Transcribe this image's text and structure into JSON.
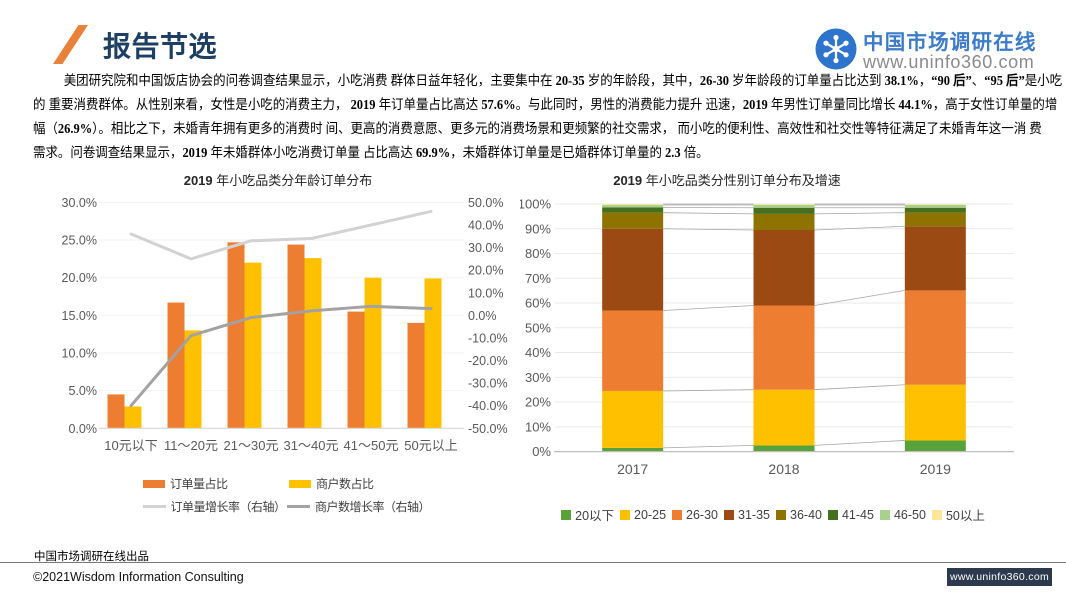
{
  "header": {
    "title": "报告节选",
    "title_color": "#1c3f63",
    "slash_color": "#e8823a",
    "brand": {
      "name": "中国市场调研在线",
      "url": "www.uninfo360.com",
      "name_color": "#3b7bc8",
      "url_color": "#8a8a8a",
      "logo_color": "#2e74cc"
    }
  },
  "paragraph": {
    "lines": [
      [
        {
          "t": "美团研究院和中国饭店协会的问卷调查结果显示，小吃消费 群体日益年轻化，主要集中在 "
        },
        {
          "t": "20-35",
          "b": true
        },
        {
          "t": " 岁的年龄段，其中，"
        },
        {
          "t": "26-30",
          "b": true
        },
        {
          "t": " 岁年龄段的订单量占比达到 "
        },
        {
          "t": "38.1%",
          "b": true
        },
        {
          "t": "，"
        },
        {
          "t": "“90 后”",
          "b": true
        },
        {
          "t": "、"
        },
        {
          "t": "“95 后”",
          "b": true
        },
        {
          "t": "是小吃"
        }
      ],
      [
        {
          "t": "的 重要消费群体。从性别来看，女性是小吃的消费主力， "
        },
        {
          "t": "2019",
          "b": true
        },
        {
          "t": " 年订单量占比高达 "
        },
        {
          "t": "57.6%",
          "b": true
        },
        {
          "t": "。与此同时，男性的消费能力提升 迅速，"
        },
        {
          "t": "2019",
          "b": true
        },
        {
          "t": " 年男性订单量同比增长 "
        },
        {
          "t": "44.1%",
          "b": true
        },
        {
          "t": "，高于女性订单量的增"
        }
      ],
      [
        {
          "t": "幅（"
        },
        {
          "t": "26.9%",
          "b": true
        },
        {
          "t": "）。相比之下，未婚青年拥有更多的消费时 间、更高的消费意愿、更多元的消费场景和更频繁的社交需求， 而小吃的便利性、高效性和社交性等特征满足了未婚青年这一消 费"
        }
      ],
      [
        {
          "t": "需求。问卷调查结果显示，"
        },
        {
          "t": "2019",
          "b": true
        },
        {
          "t": " 年未婚群体小吃消费订单量 占比高达 "
        },
        {
          "t": "69.9%",
          "b": true
        },
        {
          "t": "，未婚群体订单量是已婚群体订单量的 "
        },
        {
          "t": "2.3",
          "b": true
        },
        {
          "t": " 倍。"
        }
      ]
    ]
  },
  "chart_data": [
    {
      "type": "bar",
      "subtype": "bar-line-combo",
      "title_bold": "2019",
      "title_rest": " 年小吃品类分年龄订单分布",
      "categories": [
        "10元以下",
        "11～20元",
        "21～30元",
        "31～40元",
        "41～50元",
        "50元以上"
      ],
      "bar_series": [
        {
          "name": "订单量占比",
          "color": "#ed7d31",
          "values": [
            4.5,
            16.7,
            24.7,
            24.4,
            15.5,
            14.0
          ]
        },
        {
          "name": "商户数占比",
          "color": "#ffc000",
          "values": [
            2.9,
            13.0,
            22.0,
            22.6,
            20.0,
            19.9
          ]
        }
      ],
      "line_series": [
        {
          "name": "订单量增长率（右轴）",
          "color": "#d3d1d1",
          "values": [
            36,
            25,
            33,
            34,
            40,
            46
          ]
        },
        {
          "name": "商户数增长率（右轴）",
          "color": "#a3a1a1",
          "values": [
            -40,
            -9,
            -1,
            2,
            4,
            3
          ]
        }
      ],
      "left_axis": {
        "min": 0,
        "max": 30,
        "step": 5,
        "unit": "%"
      },
      "right_axis": {
        "min": -50,
        "max": 50,
        "step": 10,
        "unit": "%"
      },
      "grid": false,
      "legend_position": "bottom"
    },
    {
      "type": "bar",
      "subtype": "stacked-bar",
      "title_bold": "2019",
      "title_rest": " 年小吃品类分性别订单分布及增速",
      "categories": [
        "2017",
        "2018",
        "2019"
      ],
      "series": [
        {
          "name": "20以下",
          "color": "#58a23a",
          "values": [
            1.5,
            2.5,
            4.5
          ]
        },
        {
          "name": "20-25",
          "color": "#ffc000",
          "values": [
            23.0,
            22.5,
            22.5
          ]
        },
        {
          "name": "26-30",
          "color": "#ed7d31",
          "values": [
            32.5,
            34.0,
            38.1
          ]
        },
        {
          "name": "31-35",
          "color": "#9c4a14",
          "values": [
            33.0,
            30.5,
            25.9
          ]
        },
        {
          "name": "36-40",
          "color": "#8f7300",
          "values": [
            6.5,
            6.5,
            5.5
          ]
        },
        {
          "name": "41-45",
          "color": "#44701f",
          "values": [
            2.1,
            2.5,
            2.0
          ]
        },
        {
          "name": "46-50",
          "color": "#a9d18e",
          "values": [
            1.0,
            1.1,
            1.1
          ]
        },
        {
          "name": "50以上",
          "color": "#ffe699",
          "values": [
            0.4,
            0.4,
            0.4
          ]
        }
      ],
      "y_axis": {
        "min": 0,
        "max": 100,
        "step": 10,
        "unit": "%"
      },
      "grid": true,
      "series_lines": true,
      "legend_position": "bottom"
    }
  ],
  "footer": {
    "producer": "中国市场调研在线出品",
    "copyright": "©2021Wisdom Information Consulting",
    "badge": "www.uninfo360.com",
    "badge_color": "#2d3a4e"
  }
}
